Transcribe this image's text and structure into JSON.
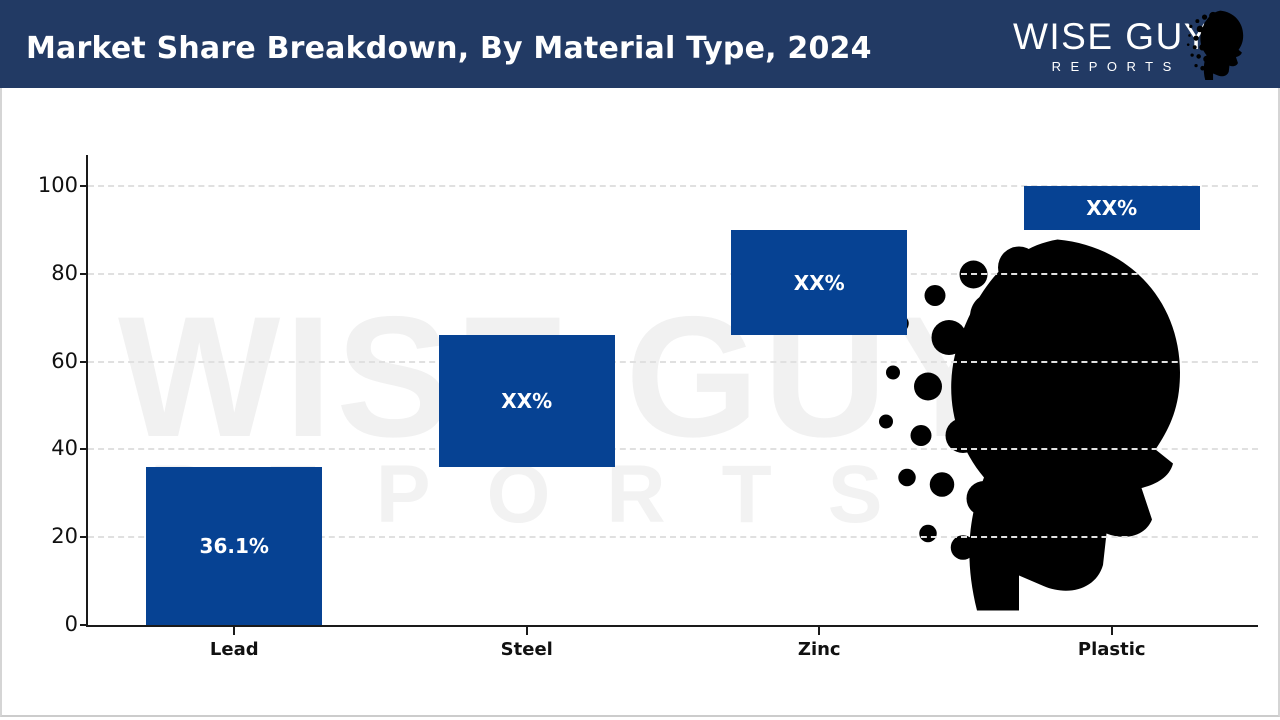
{
  "header": {
    "title": "Market Share Breakdown, By Material Type, 2024",
    "bg_color": "#223a64",
    "logo": {
      "line1": "WISE GUY",
      "line2": "REPORTS"
    }
  },
  "watermark": {
    "line1": "WISE GUY",
    "line2": "REPORTS"
  },
  "chart_data": {
    "type": "bar",
    "subtype": "waterfall",
    "title": "Market Share Breakdown, By Material Type, 2024",
    "categories": [
      "Lead",
      "Steel",
      "Zinc",
      "Plastic"
    ],
    "segments": [
      {
        "category": "Lead",
        "start": 0,
        "end": 36.1,
        "label": "36.1%"
      },
      {
        "category": "Steel",
        "start": 36.1,
        "end": 66,
        "label": "XX%"
      },
      {
        "category": "Zinc",
        "start": 66,
        "end": 90,
        "label": "XX%"
      },
      {
        "category": "Plastic",
        "start": 90,
        "end": 100,
        "label": "XX%"
      }
    ],
    "xlabel": "",
    "ylabel": "",
    "ylim": [
      0,
      100
    ],
    "yticks": [
      0,
      20,
      40,
      60,
      80,
      100
    ],
    "grid": "dashed-horizontal",
    "legend": "none",
    "bar_color": "#064293",
    "bar_label_color": "#ffffff"
  }
}
